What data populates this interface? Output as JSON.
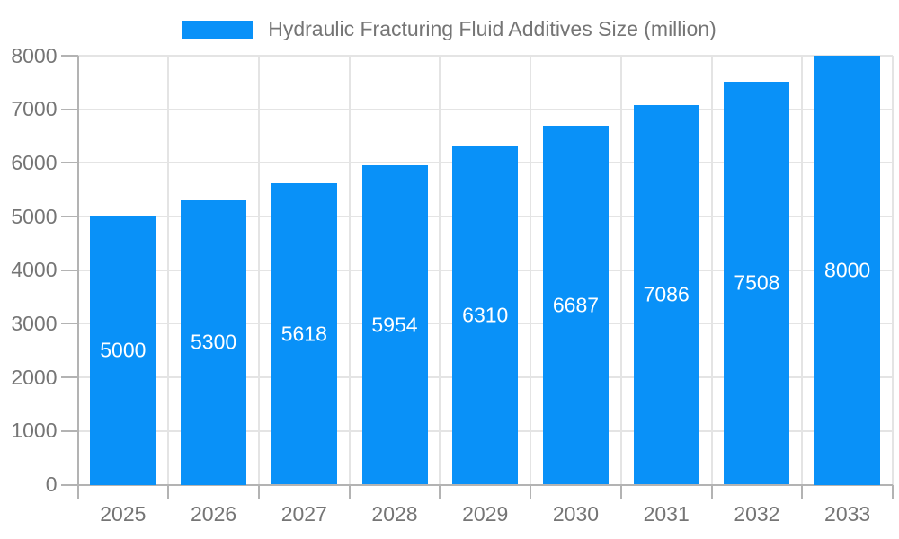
{
  "legend": {
    "label": "Hydraulic Fracturing Fluid Additives Size (million)"
  },
  "chart_data": {
    "type": "bar",
    "title": "Hydraulic Fracturing Fluid Additives Size (million)",
    "categories": [
      "2025",
      "2026",
      "2027",
      "2028",
      "2029",
      "2030",
      "2031",
      "2032",
      "2033"
    ],
    "series": [
      {
        "name": "Hydraulic Fracturing Fluid Additives Size (million)",
        "values": [
          5000,
          5300,
          5618,
          5954,
          6310,
          6687,
          7086,
          7508,
          8000
        ]
      }
    ],
    "data_labels": [
      5000,
      5300,
      5618,
      5954,
      6310,
      6687,
      7086,
      7508,
      8000
    ],
    "xlabel": "",
    "ylabel": "",
    "ylim": [
      0,
      8000
    ],
    "y_ticks": [
      0,
      1000,
      2000,
      3000,
      4000,
      5000,
      6000,
      7000,
      8000
    ],
    "grid": true,
    "legend_position": "top-center",
    "data_label_position": "inside-center"
  },
  "colors": {
    "bar": "#0991F8",
    "grid_line": "#e4e4e4",
    "axis_line": "#b3b3b3",
    "axis_text": "#757575",
    "bar_label_text": "#ffffff",
    "background": "#ffffff"
  }
}
